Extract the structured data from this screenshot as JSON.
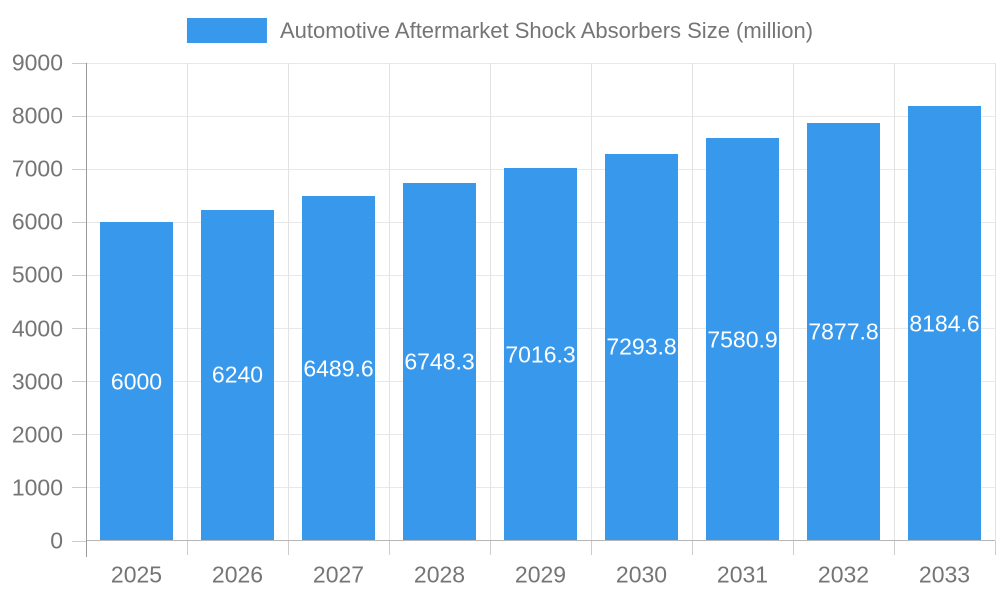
{
  "legend": {
    "label": "Automotive Aftermarket Shock Absorbers Size (million)"
  },
  "colors": {
    "bar": "#3899EC",
    "bar_label_text": "#FFFFFF",
    "axis_text": "#757575",
    "horizontal_grid": "#E8E8E8",
    "vertical_grid": "#E2E2E2",
    "x_axis_line": "#B5B5B5",
    "y_axis_line": "#9A9A9A",
    "tick": "#CCCCCC",
    "background": "#FFFFFF"
  },
  "chart_data": {
    "type": "bar",
    "title": "Automotive Aftermarket Shock Absorbers Size (million)",
    "categories": [
      "2025",
      "2026",
      "2027",
      "2028",
      "2029",
      "2030",
      "2031",
      "2032",
      "2033"
    ],
    "values": [
      6000,
      6240,
      6489.6,
      6748.3,
      7016.3,
      7293.8,
      7580.9,
      7877.8,
      8184.6
    ],
    "value_labels": [
      "6000",
      "6240",
      "6489.6",
      "6748.3",
      "7016.3",
      "7293.8",
      "7580.9",
      "7877.8",
      "8184.6"
    ],
    "xlabel": "",
    "ylabel": "",
    "ylim": [
      0,
      9000
    ],
    "yticks": [
      0,
      1000,
      2000,
      3000,
      4000,
      5000,
      6000,
      7000,
      8000,
      9000
    ],
    "grid": true,
    "legend_position": "top-center",
    "bar_label_position": "middle"
  }
}
